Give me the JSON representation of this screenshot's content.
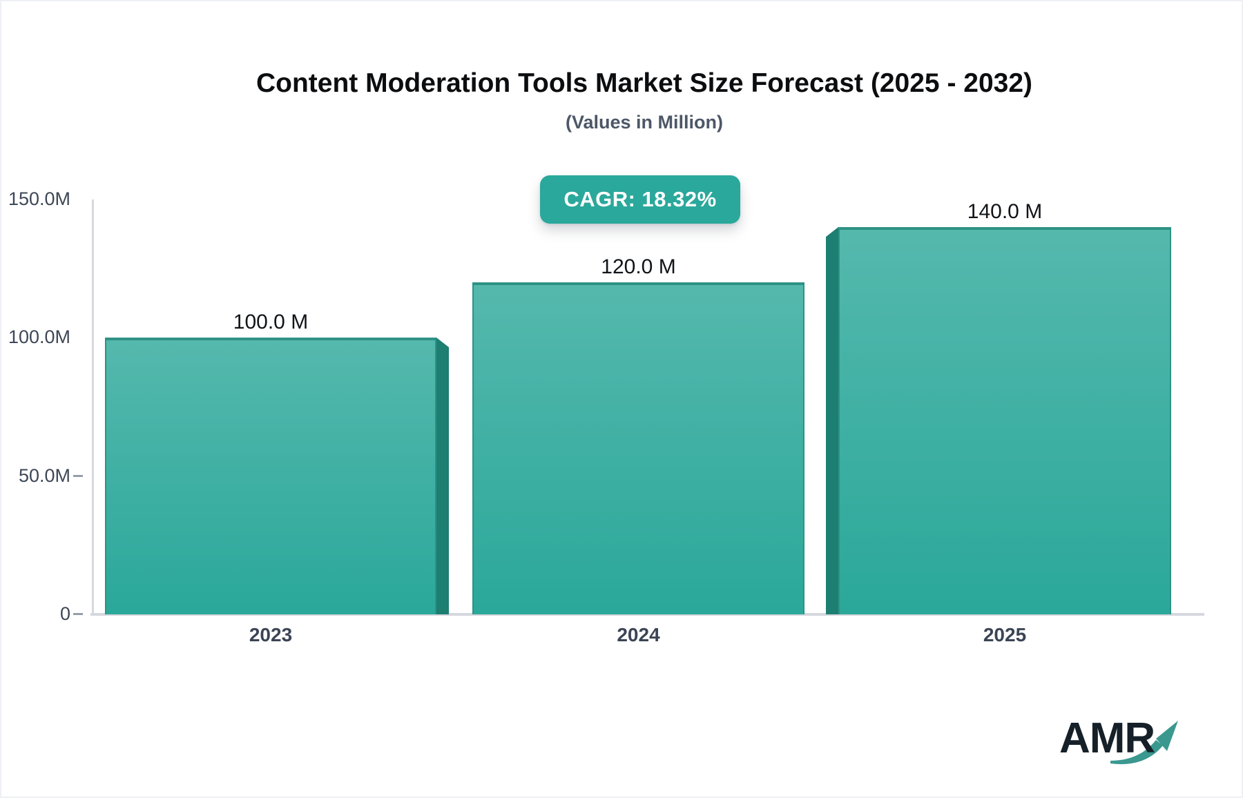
{
  "title": "Content Moderation Tools Market Size Forecast (2025 - 2032)",
  "subtitle": "(Values in Million)",
  "cagr_badge": "CAGR: 18.32%",
  "logo": {
    "text": "AMR"
  },
  "colors": {
    "title_text": "#0c0d0f",
    "subtitle_text": "#4d5766",
    "badge_bg": "#2aa89b",
    "badge_text": "#ffffff",
    "bar_gradient_top": "#55b8ad",
    "bar_gradient_bottom": "#2aa89a",
    "bar_edge": "#2e9285",
    "bar_3d_face": "#1d7e72",
    "axis_line": "#d5d8de",
    "axis_text": "#3e4756",
    "value_text": "#101418",
    "logo_text": "#152028",
    "logo_arrow": "#3a988f"
  },
  "chart_data": {
    "type": "bar",
    "title": "Content Moderation Tools Market Size Forecast (2025 - 2032)",
    "subtitle": "(Values in Million)",
    "unit": "Million",
    "categories": [
      "2023",
      "2024",
      "2025"
    ],
    "values": [
      100.0,
      120.0,
      140.0
    ],
    "bar_labels": [
      "100.0 M",
      "120.0 M",
      "140.0 M"
    ],
    "ylim": [
      0,
      150
    ],
    "yticks": [
      {
        "label": "150.0M",
        "value": 150,
        "dash": false
      },
      {
        "label": "100.0M",
        "value": 100,
        "dash": false
      },
      {
        "label": "50.0M",
        "value": 50,
        "dash": true
      },
      {
        "label": "0",
        "value": 0,
        "dash": true
      }
    ],
    "annotations": [
      {
        "label": "CAGR: 18.32%"
      }
    ],
    "grid": false,
    "legend": false,
    "bar_style": "3d-extruded"
  }
}
